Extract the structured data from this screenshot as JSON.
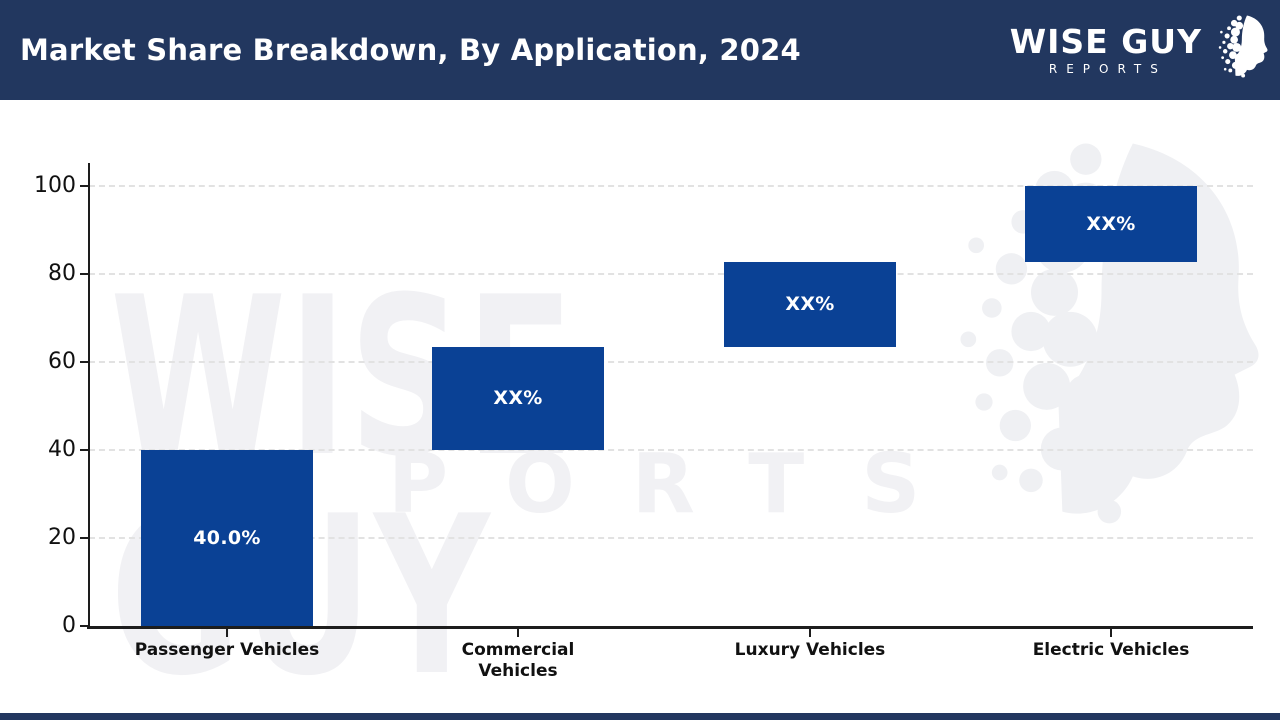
{
  "header": {
    "title": "Market Share Breakdown, By Application, 2024",
    "bg_color": "#22375f",
    "logo": {
      "line1": "WISE GUY",
      "line2": "REPORTS"
    }
  },
  "watermark": {
    "line1": "WISE GUY",
    "line2": "PORTS"
  },
  "footer": {
    "bg_color": "#22375f"
  },
  "chart_data": {
    "type": "bar",
    "subtype": "waterfall",
    "title": "Market Share Breakdown, By Application, 2024",
    "categories": [
      "Passenger Vehicles",
      "Commercial\nVehicles",
      "Luxury Vehicles",
      "Electric Vehicles"
    ],
    "bars": [
      {
        "category": "Passenger Vehicles",
        "start": 0,
        "end": 40,
        "value": 40.0,
        "label": "40.0%"
      },
      {
        "category": "Commercial Vehicles",
        "start": 40,
        "end": 63.5,
        "value": 23.5,
        "label": "XX%"
      },
      {
        "category": "Luxury Vehicles",
        "start": 63.5,
        "end": 82.7,
        "value": 19.2,
        "label": "XX%"
      },
      {
        "category": "Electric Vehicles",
        "start": 82.7,
        "end": 100,
        "value": 17.3,
        "label": "XX%"
      }
    ],
    "yticks": [
      0,
      20,
      40,
      60,
      80,
      100
    ],
    "ylim": [
      0,
      105
    ],
    "xlabel": "",
    "ylabel": "",
    "grid": "horizontal dashed",
    "legend": "none",
    "bar_color": "#0a4195",
    "axis_color": "#1d1d1d",
    "grid_color": "#e2e2e2",
    "value_label_color": "#ffffff"
  }
}
